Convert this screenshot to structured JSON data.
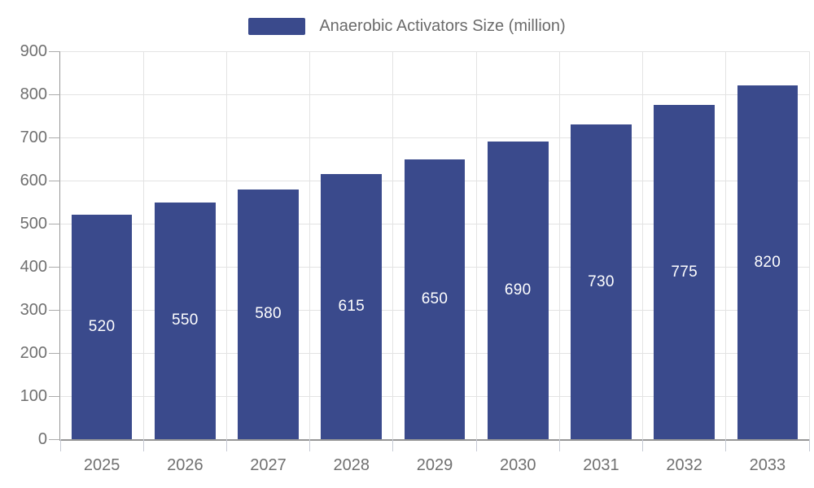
{
  "chart_data": {
    "type": "bar",
    "title": "Anaerobic Activators Size (million)",
    "legend_entries": [
      "Anaerobic Activators Size (million)"
    ],
    "legend_position": "top-center",
    "categories": [
      "2025",
      "2026",
      "2027",
      "2028",
      "2029",
      "2030",
      "2031",
      "2032",
      "2033"
    ],
    "series": [
      {
        "name": "Anaerobic Activators Size (million)",
        "values": [
          520,
          550,
          580,
          615,
          650,
          690,
          730,
          775,
          820
        ]
      }
    ],
    "xlabel": "",
    "ylabel": "",
    "ylim": [
      0,
      900
    ],
    "ytick_step": 100,
    "ytick_labels": [
      "0",
      "100",
      "200",
      "300",
      "400",
      "500",
      "600",
      "700",
      "800",
      "900"
    ],
    "grid": true,
    "value_labels_shown": true,
    "value_label_position": "center-of-bar",
    "colors": {
      "bar": "#3a4a8c",
      "value_label": "#ffffff",
      "axis_text": "#707070",
      "legend_text": "#6b6b6b",
      "grid_line": "#e3e3e3",
      "axis_line": "#979797",
      "y_tick": "#ababab",
      "x_tick": "#c6cad4",
      "background": "#ffffff"
    }
  }
}
